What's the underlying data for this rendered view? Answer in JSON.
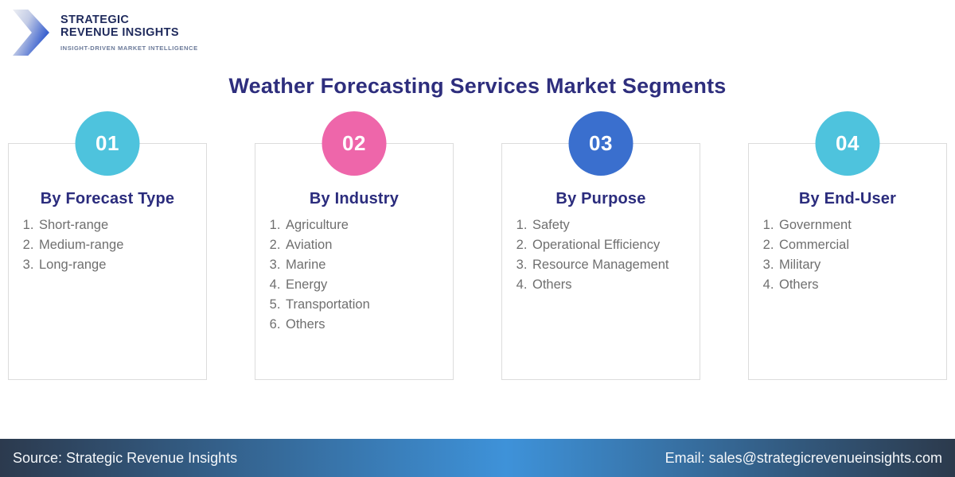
{
  "logo": {
    "name_line1": "STRATEGIC",
    "name_line2": "REVENUE INSIGHTS",
    "tagline": "INSIGHT-DRIVEN MARKET INTELLIGENCE"
  },
  "title": "Weather Forecasting Services Market Segments",
  "columns": [
    {
      "number": "01",
      "badge_color": "#4ec3dd",
      "heading": "By Forecast Type",
      "items": [
        "Short-range",
        "Medium-range",
        "Long-range"
      ]
    },
    {
      "number": "02",
      "badge_color": "#ee66aa",
      "heading": "By Industry",
      "items": [
        "Agriculture",
        "Aviation",
        "Marine",
        "Energy",
        "Transportation",
        "Others"
      ]
    },
    {
      "number": "03",
      "badge_color": "#3a6fce",
      "heading": "By Purpose",
      "items": [
        "Safety",
        "Operational Efficiency",
        "Resource Management",
        "Others"
      ]
    },
    {
      "number": "04",
      "badge_color": "#4ec3dd",
      "heading": "By End-User",
      "items": [
        "Government",
        "Commercial",
        "Military",
        "Others"
      ]
    }
  ],
  "footer": {
    "source": "Source: Strategic Revenue Insights",
    "email": "Email: sales@strategicrevenueinsights.com"
  },
  "colors": {
    "title_navy": "#2e2e7d",
    "list_gray": "#6f6f6f",
    "card_border": "#dcdcdc",
    "footer_dark": "#2c3a4e",
    "footer_blue": "#3e92d9"
  }
}
